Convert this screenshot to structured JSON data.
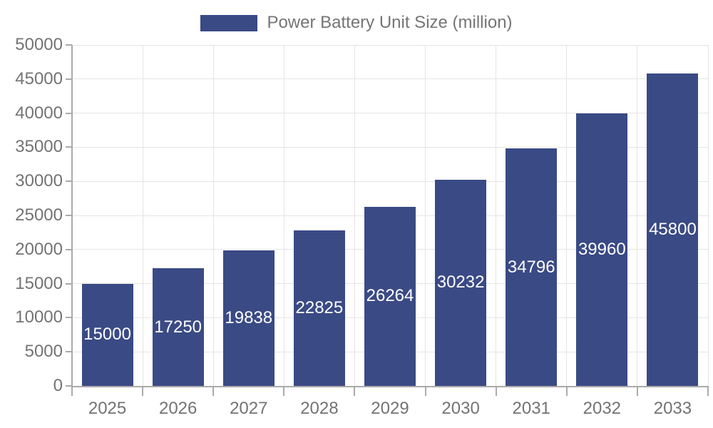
{
  "legend": {
    "label": "Power Battery Unit Size (million)"
  },
  "chart_data": {
    "type": "bar",
    "title": "",
    "categories": [
      "2025",
      "2026",
      "2027",
      "2028",
      "2029",
      "2030",
      "2031",
      "2032",
      "2033"
    ],
    "values": [
      15000,
      17250,
      19838,
      22825,
      26264,
      30232,
      34796,
      39960,
      45800
    ],
    "series_name": "Power Battery Unit Size (million)",
    "xlabel": "",
    "ylabel": "",
    "ylim": [
      0,
      50000
    ],
    "ytick_step": 5000,
    "ytick_labels": [
      "0",
      "5000",
      "10000",
      "15000",
      "20000",
      "25000",
      "30000",
      "35000",
      "40000",
      "45000",
      "50000"
    ],
    "grid": true,
    "legend_position": "top-center",
    "value_labels": "inside-center"
  },
  "colors": {
    "bar": "#3A4A85",
    "grid_line": "#e4e4e4",
    "axis_line": "#aaaaaa",
    "tick_mark": "#aaaaaa",
    "tick_text": "#737373",
    "legend_text": "#757575",
    "value_text": "#ffffff"
  }
}
